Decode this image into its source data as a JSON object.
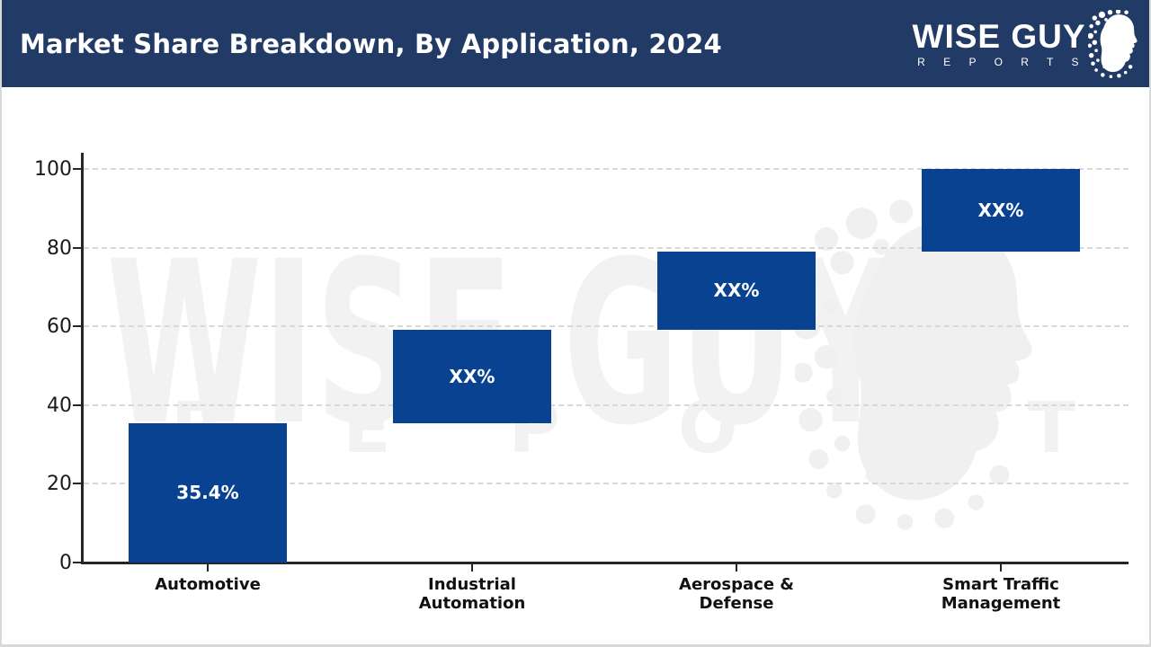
{
  "header": {
    "title": "Market Share Breakdown, By Application, 2024",
    "bg_color": "#223a66",
    "logo": {
      "line1": "WISE GUY",
      "line2": "R E P O R T S"
    }
  },
  "watermark": {
    "line1": "WISE GUY",
    "line2": "R E P O R T S"
  },
  "chart_data": {
    "type": "bar",
    "subtype": "waterfall",
    "title": "Market Share Breakdown, By Application, 2024",
    "categories": [
      "Automotive",
      "Industrial Automation",
      "Aerospace & Defense",
      "Smart Traffic Management"
    ],
    "category_lines": [
      [
        "Automotive"
      ],
      [
        "Industrial",
        "Automation"
      ],
      [
        "Aerospace &",
        "Defense"
      ],
      [
        "Smart Traffic",
        "Management"
      ]
    ],
    "segments": [
      {
        "category": "Automotive",
        "start": 0,
        "end": 35.4,
        "label": "35.4%"
      },
      {
        "category": "Industrial Automation",
        "start": 35.4,
        "end": 59.2,
        "label": "XX%"
      },
      {
        "category": "Aerospace & Defense",
        "start": 59.2,
        "end": 79.1,
        "label": "XX%"
      },
      {
        "category": "Smart Traffic Management",
        "start": 79.1,
        "end": 100,
        "label": "XX%"
      }
    ],
    "yticks": [
      0,
      20,
      40,
      60,
      80,
      100
    ],
    "ylim": [
      0,
      104
    ],
    "xlabel": "",
    "ylabel": "",
    "grid": "horizontal-dashed",
    "legend": "none",
    "bar_color": "#0a4292",
    "bar_label_color": "#ffffff",
    "axis_color": "#262626",
    "grid_color": "#d8d8d8"
  }
}
